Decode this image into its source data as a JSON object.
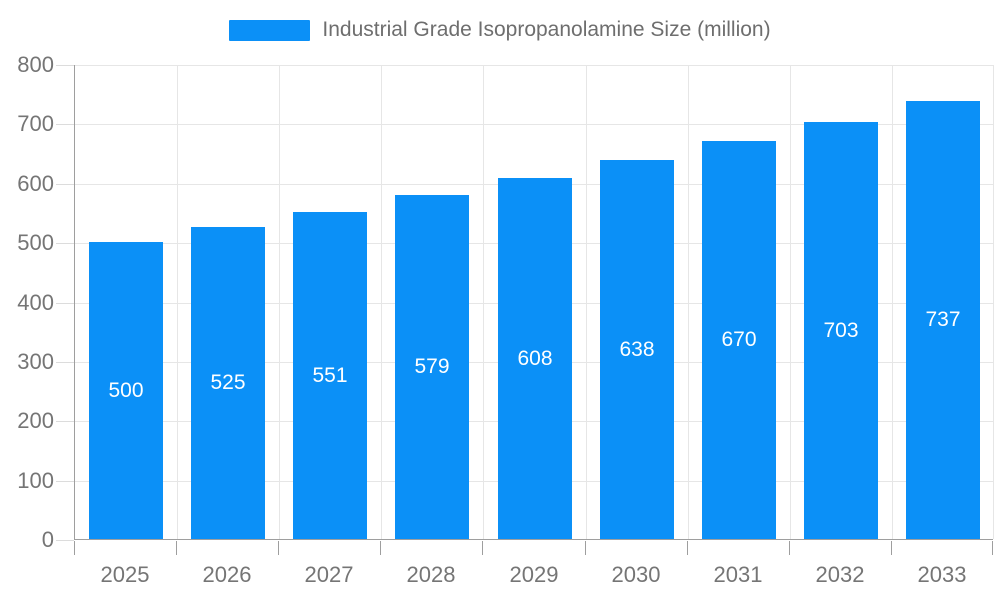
{
  "chart_data": {
    "type": "bar",
    "title": "Industrial Grade Isopropanolamine Size (million)",
    "categories": [
      "2025",
      "2026",
      "2027",
      "2028",
      "2029",
      "2030",
      "2031",
      "2032",
      "2033"
    ],
    "values": [
      500,
      525,
      551,
      579,
      608,
      638,
      670,
      703,
      737
    ],
    "xlabel": "",
    "ylabel": "",
    "ylim": [
      0,
      800
    ],
    "ytick_step": 100,
    "grid": true,
    "legend_position": "top",
    "value_labels": "inside-center",
    "colors": {
      "bar": "#0b90f7",
      "grid": "#e6e6e6",
      "axis": "#9e9e9e",
      "axis_text": "#757575",
      "legend_text": "#6e6e6e",
      "value_label_text": "#ffffff",
      "background": "#ffffff"
    }
  }
}
